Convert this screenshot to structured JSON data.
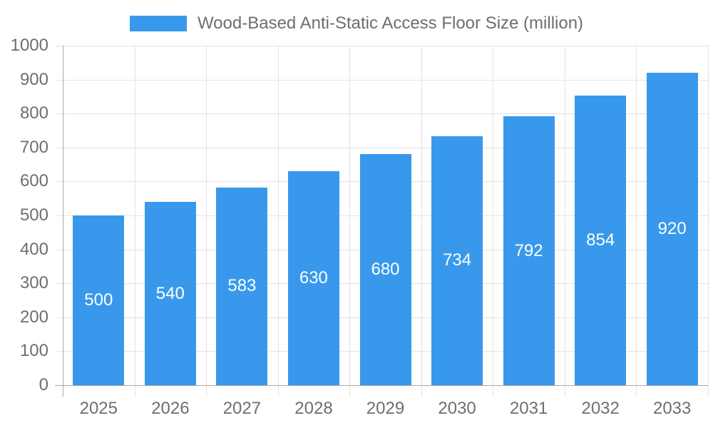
{
  "legend": {
    "label": "Wood-Based Anti-Static Access Floor Size (million)"
  },
  "chart_data": {
    "type": "bar",
    "title": "Wood-Based Anti-Static Access Floor Size (million)",
    "categories": [
      "2025",
      "2026",
      "2027",
      "2028",
      "2029",
      "2030",
      "2031",
      "2032",
      "2033"
    ],
    "values": [
      500,
      540,
      583,
      630,
      680,
      734,
      792,
      854,
      920
    ],
    "xlabel": "",
    "ylabel": "",
    "ylim": [
      0,
      1000
    ],
    "ytick_step": 100,
    "grid": true,
    "legend_position": "top",
    "value_labels": "inside-center",
    "colors": {
      "bar": "#3899EC",
      "value_label": "#FFFFFF",
      "text": "#6E6E6E",
      "gridline": "#E3E3E3",
      "axis": "#A8A8A8"
    }
  }
}
